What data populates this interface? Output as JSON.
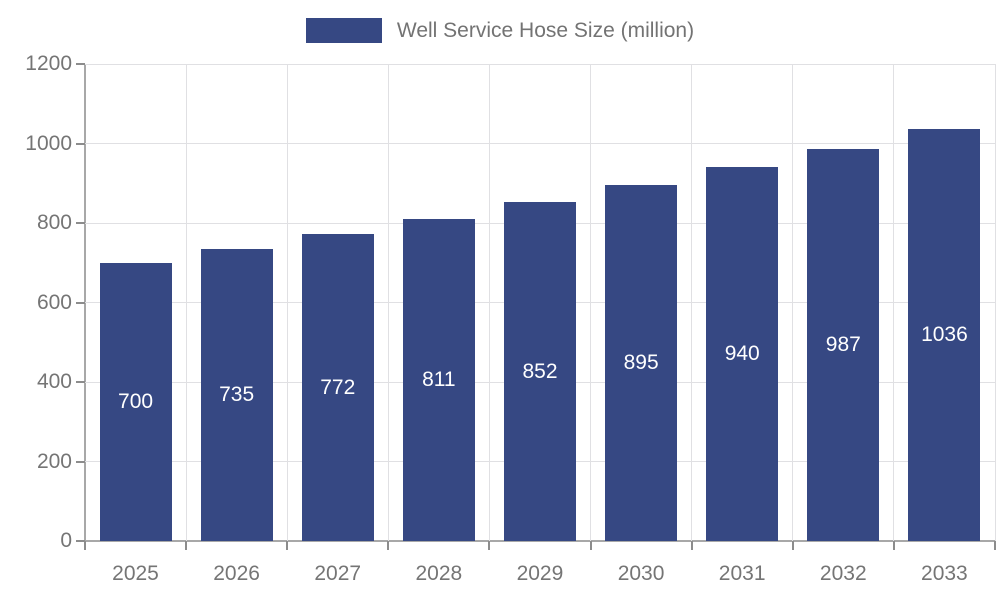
{
  "legend": {
    "label": "Well Service Hose Size (million)"
  },
  "colors": {
    "bar": "#364883",
    "grid": "#e0e0e3",
    "axis": "#a8a8a8",
    "tick_mark": "#8c8c8c",
    "axis_text": "#757575",
    "legend_text": "#737373",
    "value_text": "#ffffff"
  },
  "chart_data": {
    "type": "bar",
    "title": "Well Service Hose Size (million)",
    "categories": [
      "2025",
      "2026",
      "2027",
      "2028",
      "2029",
      "2030",
      "2031",
      "2032",
      "2033"
    ],
    "values": [
      700,
      735,
      772,
      811,
      852,
      895,
      940,
      987,
      1036
    ],
    "xlabel": "",
    "ylabel": "",
    "ylim": [
      0,
      1200
    ],
    "yticks": [
      0,
      200,
      400,
      600,
      800,
      1000,
      1200
    ],
    "grid": true,
    "legend_position": "top",
    "value_labels": "inside-center"
  }
}
